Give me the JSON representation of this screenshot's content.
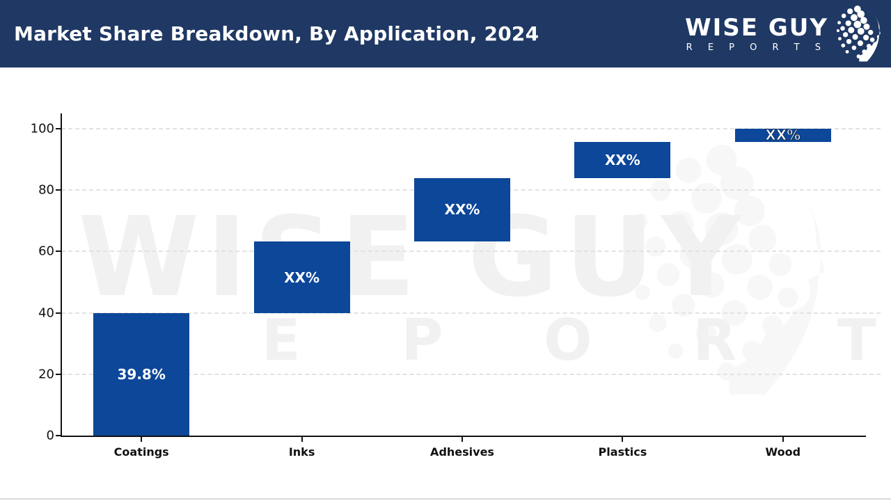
{
  "header": {
    "title": "Market Share Breakdown, By Application, 2024",
    "bg_color": "#1f3864",
    "logo": {
      "line1": "WISE GUY",
      "line2": "R E P O R T S"
    }
  },
  "watermark": {
    "line1": "WISE GUY",
    "line2": "R E P O R T S"
  },
  "chart_data": {
    "type": "bar",
    "subtype": "waterfall",
    "title": "Market Share Breakdown, By Application, 2024",
    "xlabel": "",
    "ylabel": "",
    "categories": [
      "Coatings",
      "Inks",
      "Adhesives",
      "Plastics",
      "Wood"
    ],
    "bars": [
      {
        "category": "Coatings",
        "start": 0,
        "end": 39.8,
        "label": "39.8%"
      },
      {
        "category": "Inks",
        "start": 39.8,
        "end": 63.2,
        "label": "XX%"
      },
      {
        "category": "Adhesives",
        "start": 63.2,
        "end": 84.0,
        "label": "XX%"
      },
      {
        "category": "Plastics",
        "start": 84.0,
        "end": 95.8,
        "label": "XX%"
      },
      {
        "category": "Wood",
        "start": 95.8,
        "end": 100,
        "label": "XX%"
      }
    ],
    "yticks": [
      0,
      20,
      40,
      60,
      80,
      100
    ],
    "ylim": [
      0,
      105
    ],
    "grid": "horizontal-dashed",
    "legend": "none",
    "bar_color": "#0c4799",
    "label_color": "#ffffff",
    "axis_color": "#111111",
    "grid_color": "#e2e2e2"
  }
}
